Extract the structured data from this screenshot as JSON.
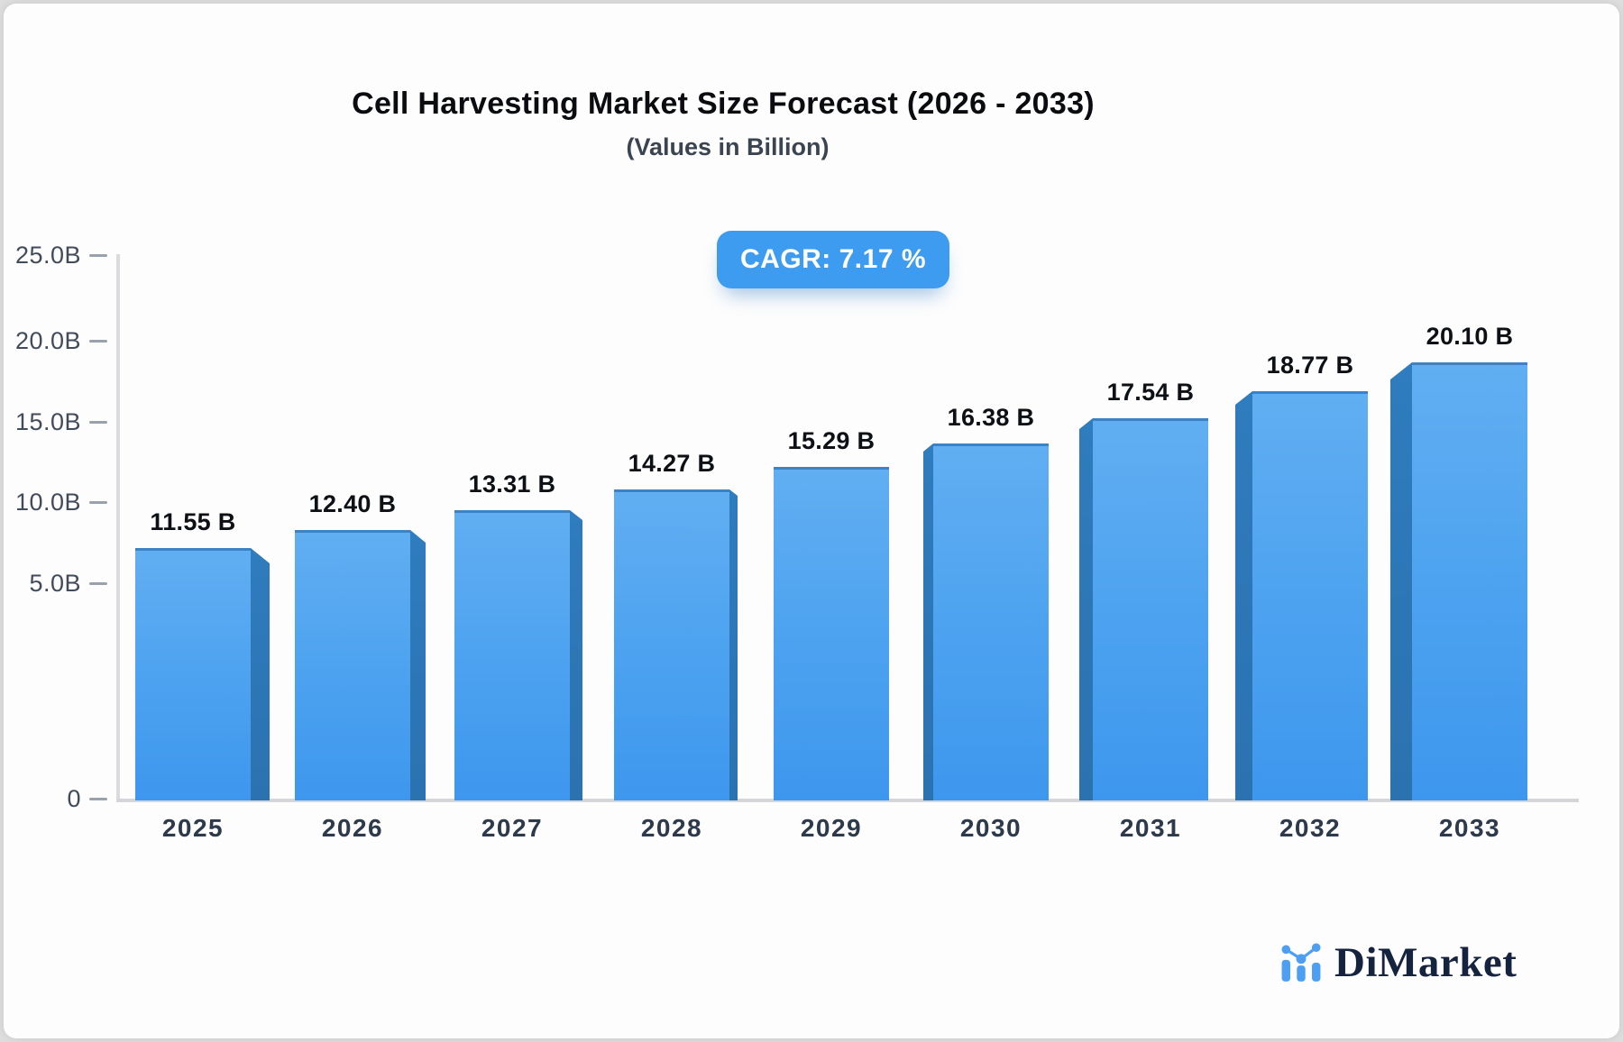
{
  "title": "Cell Harvesting Market Size Forecast (2026 - 2033)",
  "subtitle": "(Values in Billion)",
  "cagr_badge": {
    "label": "CAGR: 7.17 %"
  },
  "chart_data": {
    "type": "bar",
    "title": "Cell Harvesting Market Size Forecast (2026 - 2033)",
    "subtitle": "(Values in Billion)",
    "categories": [
      "2025",
      "2026",
      "2027",
      "2028",
      "2029",
      "2030",
      "2031",
      "2032",
      "2033"
    ],
    "values": [
      11.55,
      12.4,
      13.31,
      14.27,
      15.29,
      16.38,
      17.54,
      18.77,
      20.1
    ],
    "value_labels": [
      "11.55 B",
      "12.40 B",
      "13.31 B",
      "14.27 B",
      "15.29 B",
      "16.38 B",
      "17.54 B",
      "18.77 B",
      "20.10 B"
    ],
    "unit": "B",
    "xlabel": "",
    "ylabel": "",
    "ylim": [
      0,
      25
    ],
    "ytick_labels": [
      "25.0B",
      "20.0B",
      "15.0B",
      "10.0B",
      "5.0B",
      "0"
    ],
    "grid": false,
    "legend": false,
    "bar_style": "pseudo-3d",
    "annotations": [
      "CAGR: 7.17 %"
    ]
  },
  "branding": {
    "logo_text": "DiMarket",
    "logo_icon": "mini-bar-chart-icon"
  },
  "colors": {
    "bar_front_top": "#61aef2",
    "bar_front_bottom": "#3e97ee",
    "bar_side": "#2c76b6",
    "bar_top_edge": "#3c83c6",
    "axis": "#dbdbdf",
    "tick": "#99a1ac",
    "y_label": "#414b5a",
    "x_label": "#2d3a4b",
    "value_label": "#0d1014",
    "title": "#0a0c10",
    "subtitle": "#3a4551",
    "badge_background": "#3d9bf0",
    "badge_text": "#ffffff",
    "logo_blue": "#4d9ff3",
    "logo_navy": "#16233e"
  }
}
